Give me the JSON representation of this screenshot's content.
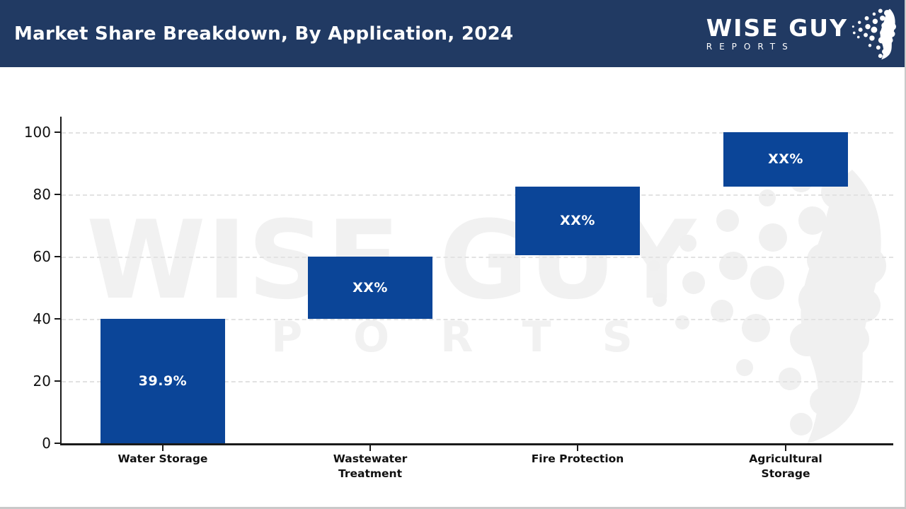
{
  "header": {
    "title": "Market Share Breakdown, By Application, 2024",
    "logo": {
      "line1": "WISE GUY",
      "line2": "REPORTS"
    }
  },
  "watermark": {
    "line1": "WISE GUY",
    "line2": "REPORTS"
  },
  "chart_data": {
    "type": "bar",
    "subtype": "waterfall",
    "title": "Market Share Breakdown, By Application, 2024",
    "categories": [
      "Water Storage",
      "Wastewater Treatment",
      "Fire Protection",
      "Agricultural Storage"
    ],
    "tick_labels": [
      "Water Storage",
      "Wastewater\nTreatment",
      "Fire Protection",
      "Agricultural\nStorage"
    ],
    "segments": [
      {
        "category": "Water Storage",
        "from": 0,
        "to": 39.9,
        "label": "39.9%"
      },
      {
        "category": "Wastewater Treatment",
        "from": 40,
        "to": 60,
        "label": "XX%"
      },
      {
        "category": "Fire Protection",
        "from": 60.5,
        "to": 82.5,
        "label": "XX%"
      },
      {
        "category": "Agricultural Storage",
        "from": 82.6,
        "to": 100,
        "label": "XX%"
      }
    ],
    "ylim": [
      0,
      100
    ],
    "yticks": [
      0,
      20,
      40,
      60,
      80,
      100
    ],
    "grid": "horizontal-dashed",
    "legend": "none",
    "bar_color": "#0b4598",
    "value_label_color": "#ffffff"
  },
  "colors": {
    "header_bg": "#213a63",
    "bar": "#0b4598",
    "grid": "#e2e2e2",
    "axis": "#1a1a1a",
    "watermark": "#f1f1f1"
  }
}
